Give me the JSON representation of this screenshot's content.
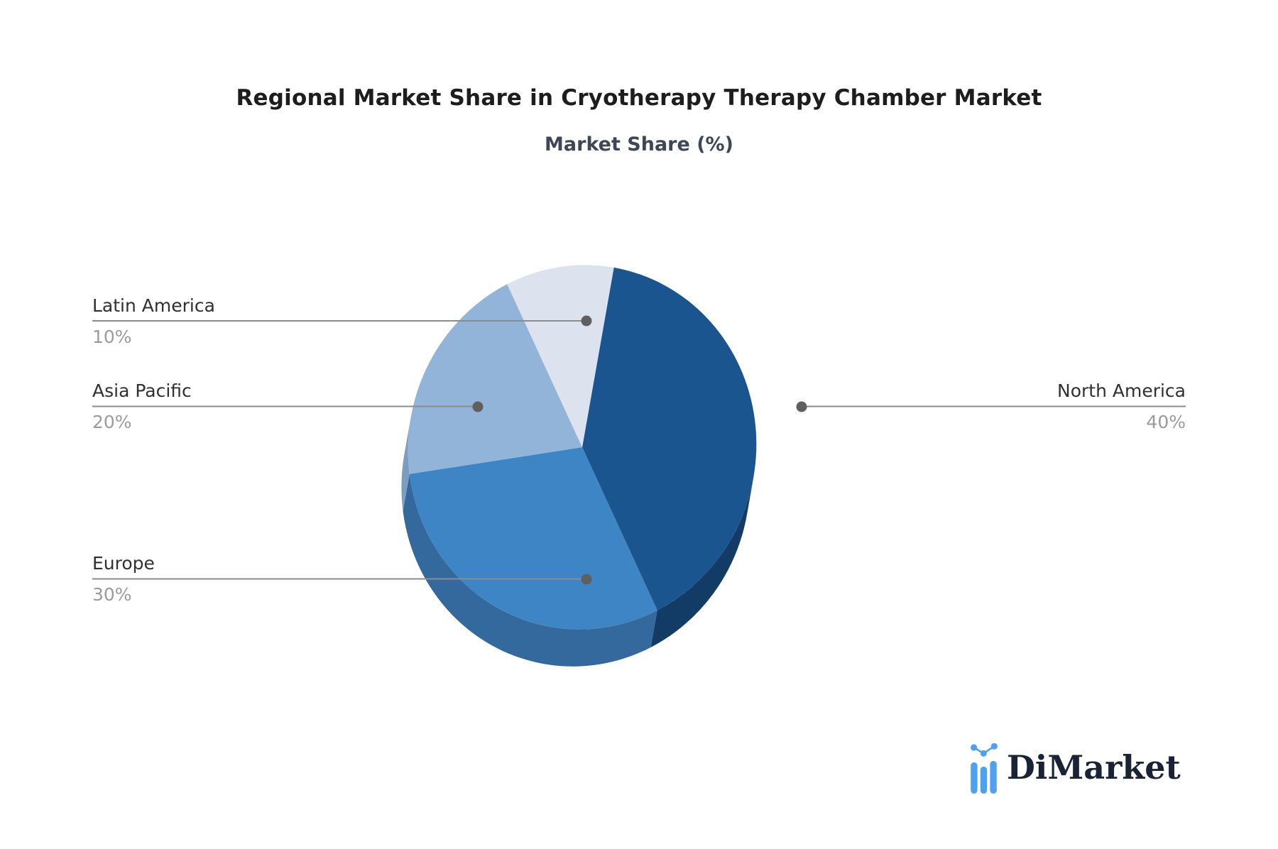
{
  "chart_data": {
    "type": "pie",
    "style": "3d",
    "title": "Regional Market Share in Cryotherapy Therapy Chamber Market",
    "subtitle": "Market Share (%)",
    "unit": "%",
    "order": "clockwise-from-top",
    "categories": [
      "North America",
      "Europe",
      "Asia Pacific",
      "Latin America"
    ],
    "values": [
      40,
      30,
      20,
      10
    ],
    "slices": [
      {
        "name": "North America",
        "value": 40,
        "pct_label": "40%",
        "color": "#1A5590",
        "side_color": "#123C66",
        "label_side": "right"
      },
      {
        "name": "Europe",
        "value": 30,
        "pct_label": "30%",
        "color": "#3E85C6",
        "side_color": "#33699C",
        "label_side": "left"
      },
      {
        "name": "Asia Pacific",
        "value": 20,
        "pct_label": "20%",
        "color": "#92B4D8",
        "side_color": "#7E9CBE",
        "label_side": "left"
      },
      {
        "name": "Latin America",
        "value": 10,
        "pct_label": "10%",
        "color": "#DCE3EF",
        "side_color": "#B9C5D8",
        "label_side": "left"
      }
    ],
    "legend": "none",
    "leader_line_color": "#8c8c8c",
    "leader_dot_color": "#5f5f5f"
  },
  "branding": {
    "logo_text": "DiMarket",
    "logo_icon": "bar-chart-icon",
    "logo_icon_color": "#4DA1F0",
    "logo_text_color": "#1a2236"
  }
}
